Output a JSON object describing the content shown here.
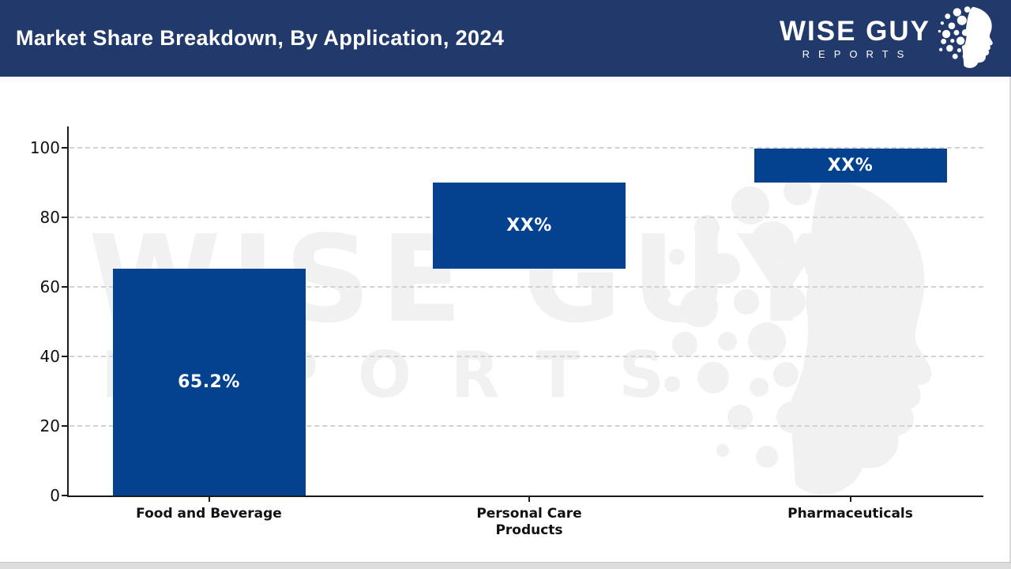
{
  "header": {
    "title": "Market Share Breakdown, By Application, 2024",
    "bg_color": "#22396b",
    "logo": {
      "line1": "WISE GUY",
      "line2": "REPORTS"
    }
  },
  "watermark": {
    "line1": "WISE GUY",
    "line2": "REPORTS"
  },
  "chart_data": {
    "type": "bar",
    "variant": "stacked_cumulative_segments",
    "title": "Market Share Breakdown, By Application, 2024",
    "categories": [
      "Food and Beverage",
      "Personal Care Products",
      "Pharmaceuticals"
    ],
    "bars": [
      {
        "category": "Food and Beverage",
        "tick_lines": [
          "Food and Beverage"
        ],
        "start": 0,
        "end": 65.2,
        "value": 65.2,
        "value_label": "65.2%"
      },
      {
        "category": "Personal Care Products",
        "tick_lines": [
          "Personal Care",
          "Products"
        ],
        "start": 65.2,
        "end": 90.0,
        "value": 24.8,
        "value_label": "XX%"
      },
      {
        "category": "Pharmaceuticals",
        "tick_lines": [
          "Pharmaceuticals"
        ],
        "start": 90.0,
        "end": 99.8,
        "value": 9.8,
        "value_label": "XX%"
      }
    ],
    "yticks": [
      0,
      20,
      40,
      60,
      80,
      100
    ],
    "ylim": [
      0,
      106
    ],
    "xlabel": "",
    "ylabel": "",
    "grid": {
      "axis": "y",
      "style": "dashed",
      "color": "#d2d2d2"
    },
    "legend": null,
    "bar_color": "#04428f",
    "bar_label_color": "#ffffff",
    "axis_color": "#1a1a1a"
  },
  "icons": {
    "logo_head": "wiseguy-dotted-head-icon",
    "watermark_head": "wiseguy-dotted-head-watermark"
  }
}
